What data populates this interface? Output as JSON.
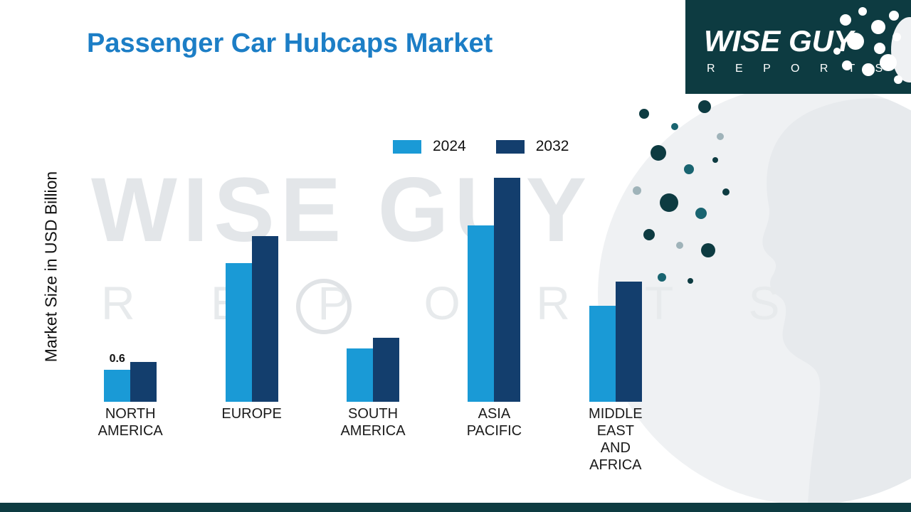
{
  "title": "Passenger Car Hubcaps Market",
  "logo": {
    "name_line": "WISE GUY",
    "reports_line": "R E P O R T S"
  },
  "watermark": {
    "line1": "WISE GUY",
    "line2": "R E P O R T S"
  },
  "colors": {
    "title_blue": "#1c7ec6",
    "series_2024": "#1a9ad6",
    "series_2032": "#133e6d",
    "teal_dark": "#0d3b41",
    "circle_gray": "#eff1f3"
  },
  "chart_data": {
    "type": "bar",
    "title": "Passenger Car Hubcaps Market",
    "ylabel": "Market Size in USD Billion",
    "categories": [
      "NORTH AMERICA",
      "EUROPE",
      "SOUTH AMERICA",
      "ASIA PACIFIC",
      "MIDDLE EAST AND AFRICA"
    ],
    "series": [
      {
        "name": "2024",
        "color": "#1a9ad6",
        "values": [
          0.6,
          2.6,
          1.0,
          3.3,
          1.8
        ]
      },
      {
        "name": "2032",
        "color": "#133e6d",
        "values": [
          0.75,
          3.1,
          1.2,
          4.2,
          2.25
        ]
      }
    ],
    "shown_labels": [
      {
        "series": "2024",
        "category_index": 0,
        "text": "0.6"
      }
    ],
    "ylim": [
      0,
      4.5
    ],
    "grid": false,
    "legend_position": "top"
  }
}
